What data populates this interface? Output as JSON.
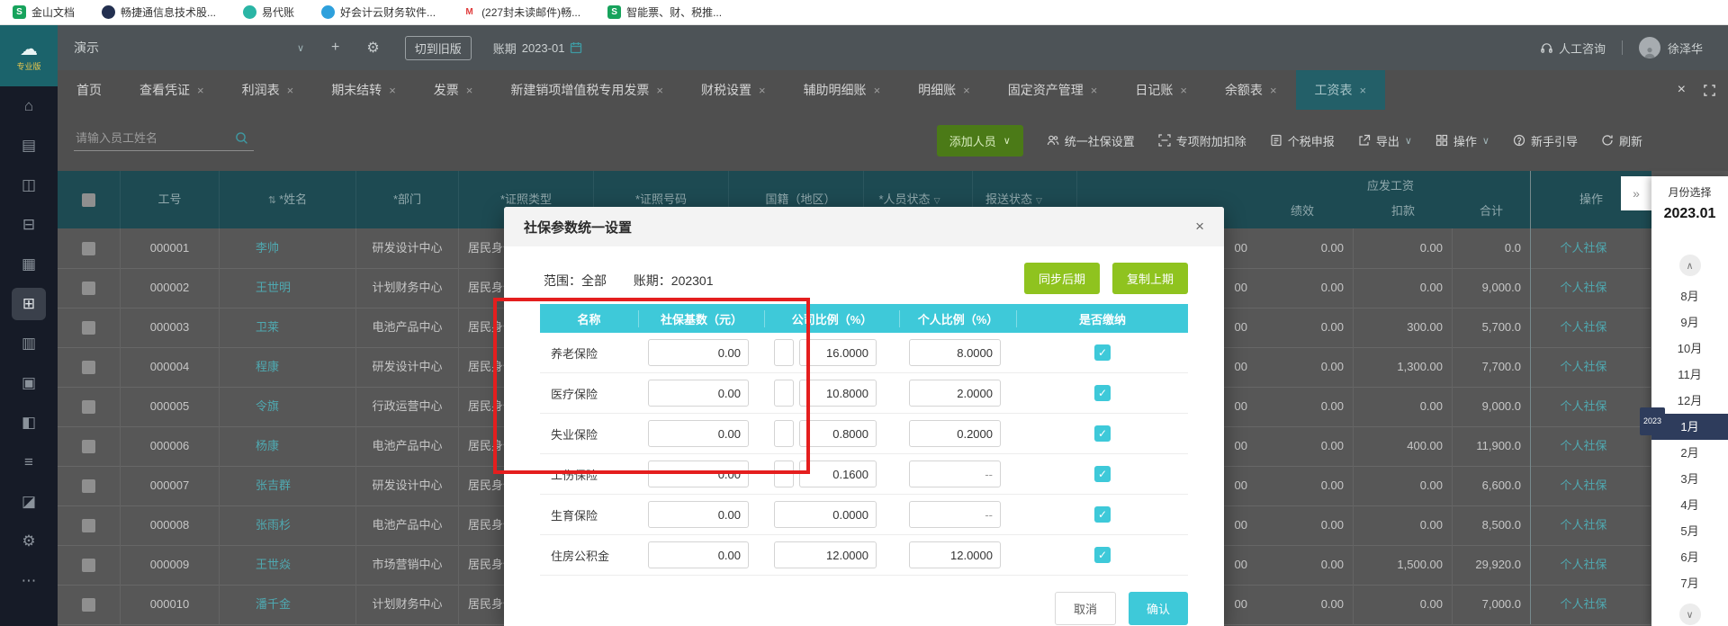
{
  "glyphs": {
    "caret_down": "∨",
    "close": "×",
    "plus": "+",
    "gear": "⚙",
    "cloud": "☁",
    "chevrons_right": "»",
    "chevron_up": "∧",
    "chevron_down": "∨",
    "check": "✓",
    "sort": "⇅",
    "filter": "▽"
  },
  "browser": {
    "bookmarks": [
      {
        "label": "金山文档",
        "glyph": "S",
        "bg": "#17a35c",
        "fg": "#fff",
        "round": false
      },
      {
        "label": "畅捷通信息技术股...",
        "glyph": "",
        "bg": "#233050",
        "fg": "#fff",
        "round": true
      },
      {
        "label": "易代账",
        "glyph": "",
        "bg": "#2ab5a5",
        "fg": "#fff",
        "round": true
      },
      {
        "label": "好会计云财务软件...",
        "glyph": "",
        "bg": "#2ea0dc",
        "fg": "#fff",
        "round": true
      },
      {
        "label": "(227封未读邮件)畅...",
        "glyph": "M",
        "bg": "transparent",
        "fg": "#e03c3c",
        "round": false
      },
      {
        "label": "智能票、财、税推...",
        "glyph": "S",
        "bg": "#17a35c",
        "fg": "#fff",
        "round": false
      }
    ]
  },
  "sidebar": {
    "badge": "专业版",
    "active_index": 5,
    "items": [
      {
        "name": "home",
        "glyph": "⌂"
      },
      {
        "name": "voucher",
        "glyph": "▤"
      },
      {
        "name": "reports",
        "glyph": "◫"
      },
      {
        "name": "closing",
        "glyph": "⊟"
      },
      {
        "name": "assets",
        "glyph": "▦"
      },
      {
        "name": "salary",
        "glyph": "⊞"
      },
      {
        "name": "purchase",
        "glyph": "▥"
      },
      {
        "name": "inventory",
        "glyph": "▣"
      },
      {
        "name": "invoice",
        "glyph": "◧"
      },
      {
        "name": "expense",
        "glyph": "≡"
      },
      {
        "name": "funds",
        "glyph": "◪"
      },
      {
        "name": "settings",
        "glyph": "⚙"
      },
      {
        "name": "more",
        "glyph": "⋯"
      }
    ]
  },
  "topbar": {
    "company": "演示",
    "switch_old": "切到旧版",
    "period_label": "账期",
    "period_value": "2023-01",
    "support": "人工咨询",
    "user": "徐泽华"
  },
  "tabs": [
    {
      "label": "首页",
      "closable": false,
      "active": false
    },
    {
      "label": "查看凭证",
      "closable": true,
      "active": false
    },
    {
      "label": "利润表",
      "closable": true,
      "active": false
    },
    {
      "label": "期末结转",
      "closable": true,
      "active": false
    },
    {
      "label": "发票",
      "closable": true,
      "active": false
    },
    {
      "label": "新建销项增值税专用发票",
      "closable": true,
      "active": false
    },
    {
      "label": "财税设置",
      "closable": true,
      "active": false
    },
    {
      "label": "辅助明细账",
      "closable": true,
      "active": false
    },
    {
      "label": "明细账",
      "closable": true,
      "active": false
    },
    {
      "label": "固定资产管理",
      "closable": true,
      "active": false
    },
    {
      "label": "日记账",
      "closable": true,
      "active": false
    },
    {
      "label": "余额表",
      "closable": true,
      "active": false
    },
    {
      "label": "工资表",
      "closable": true,
      "active": true
    }
  ],
  "toolbar": {
    "search_placeholder": "请输入员工姓名",
    "add_label": "添加人员",
    "actions": [
      {
        "label": "统一社保设置",
        "icon": "people",
        "caret": false
      },
      {
        "label": "专项附加扣除",
        "icon": "scan",
        "caret": false
      },
      {
        "label": "个税申报",
        "icon": "doc",
        "caret": false
      },
      {
        "label": "导出",
        "icon": "export",
        "caret": true
      },
      {
        "label": "操作",
        "icon": "grid",
        "caret": true
      },
      {
        "label": "新手引导",
        "icon": "question",
        "caret": false
      },
      {
        "label": "刷新",
        "icon": "refresh",
        "caret": false
      }
    ]
  },
  "table": {
    "headers": {
      "emp_id": "工号",
      "name": "*姓名",
      "dept": "*部门",
      "cert_type": "*证照类型",
      "cert_no": "*证照号码",
      "nation": "国籍（地区）",
      "staff_status": "*人员状态",
      "report_status": "报送状态",
      "salary_group": "应发工资",
      "perf": "绩效",
      "deduct": "扣款",
      "total": "合计",
      "ops": "操作"
    },
    "rows": [
      {
        "id": "000001",
        "name": "李帅",
        "dept": "研发设计中心",
        "cert": "居民身份证",
        "cut": "00",
        "perf": "0.00",
        "deduct": "0.00",
        "total": "0.0",
        "op": "个人社保"
      },
      {
        "id": "000002",
        "name": "王世明",
        "dept": "计划财务中心",
        "cert": "居民身份证",
        "cut": "00",
        "perf": "0.00",
        "deduct": "0.00",
        "total": "9,000.0",
        "op": "个人社保"
      },
      {
        "id": "000003",
        "name": "卫莱",
        "dept": "电池产品中心",
        "cert": "居民身份证",
        "cut": "00",
        "perf": "0.00",
        "deduct": "300.00",
        "total": "5,700.0",
        "op": "个人社保"
      },
      {
        "id": "000004",
        "name": "程康",
        "dept": "研发设计中心",
        "cert": "居民身份证",
        "cut": "00",
        "perf": "0.00",
        "deduct": "1,300.00",
        "total": "7,700.0",
        "op": "个人社保"
      },
      {
        "id": "000005",
        "name": "令旗",
        "dept": "行政运营中心",
        "cert": "居民身份证",
        "cut": "00",
        "perf": "0.00",
        "deduct": "0.00",
        "total": "9,000.0",
        "op": "个人社保"
      },
      {
        "id": "000006",
        "name": "杨康",
        "dept": "电池产品中心",
        "cert": "居民身份证",
        "cut": "00",
        "perf": "0.00",
        "deduct": "400.00",
        "total": "11,900.0",
        "op": "个人社保"
      },
      {
        "id": "000007",
        "name": "张吉群",
        "dept": "研发设计中心",
        "cert": "居民身份证",
        "cut": "00",
        "perf": "0.00",
        "deduct": "0.00",
        "total": "6,600.0",
        "op": "个人社保"
      },
      {
        "id": "000008",
        "name": "张雨杉",
        "dept": "电池产品中心",
        "cert": "居民身份证",
        "cut": "00",
        "perf": "0.00",
        "deduct": "0.00",
        "total": "8,500.0",
        "op": "个人社保"
      },
      {
        "id": "000009",
        "name": "王世焱",
        "dept": "市场营销中心",
        "cert": "居民身份证",
        "cut": "00",
        "perf": "0.00",
        "deduct": "1,500.00",
        "total": "29,920.0",
        "op": "个人社保"
      },
      {
        "id": "000010",
        "name": "潘千金",
        "dept": "计划财务中心",
        "cert": "居民身份证",
        "cut": "00",
        "perf": "0.00",
        "deduct": "0.00",
        "total": "7,000.0",
        "op": "个人社保"
      }
    ]
  },
  "month_panel": {
    "title": "月份选择",
    "period": "2023.01",
    "year_badge": "2023",
    "active_month": "1月",
    "months": [
      "8月",
      "9月",
      "10月",
      "11月",
      "12月",
      "1月",
      "2月",
      "3月",
      "4月",
      "5月",
      "6月",
      "7月"
    ]
  },
  "modal": {
    "title": "社保参数统一设置",
    "scope_label": "范围：",
    "scope_value": "全部",
    "period_label": "账期：",
    "period_value": "202301",
    "sync_button": "同步后期",
    "copy_button": "复制上期",
    "headers": [
      "名称",
      "社保基数（元）",
      "公司比例（%）",
      "个人比例（%）",
      "是否缴纳"
    ],
    "rows": [
      {
        "name": "养老保险",
        "base": "0.00",
        "company": "16.0000",
        "personal": "8.0000",
        "checked": true,
        "split": true
      },
      {
        "name": "医疗保险",
        "base": "0.00",
        "company": "10.8000",
        "personal": "2.0000",
        "checked": true,
        "split": true
      },
      {
        "name": "失业保险",
        "base": "0.00",
        "company": "0.8000",
        "personal": "0.2000",
        "checked": true,
        "split": true
      },
      {
        "name": "工伤保险",
        "base": "0.00",
        "company": "0.1600",
        "personal": "--",
        "checked": true,
        "split": true
      },
      {
        "name": "生育保险",
        "base": "0.00",
        "company": "0.0000",
        "personal": "--",
        "checked": true,
        "split": false
      },
      {
        "name": "住房公积金",
        "base": "0.00",
        "company": "12.0000",
        "personal": "12.0000",
        "checked": true,
        "split": false
      }
    ],
    "cancel": "取消",
    "confirm": "确认"
  }
}
